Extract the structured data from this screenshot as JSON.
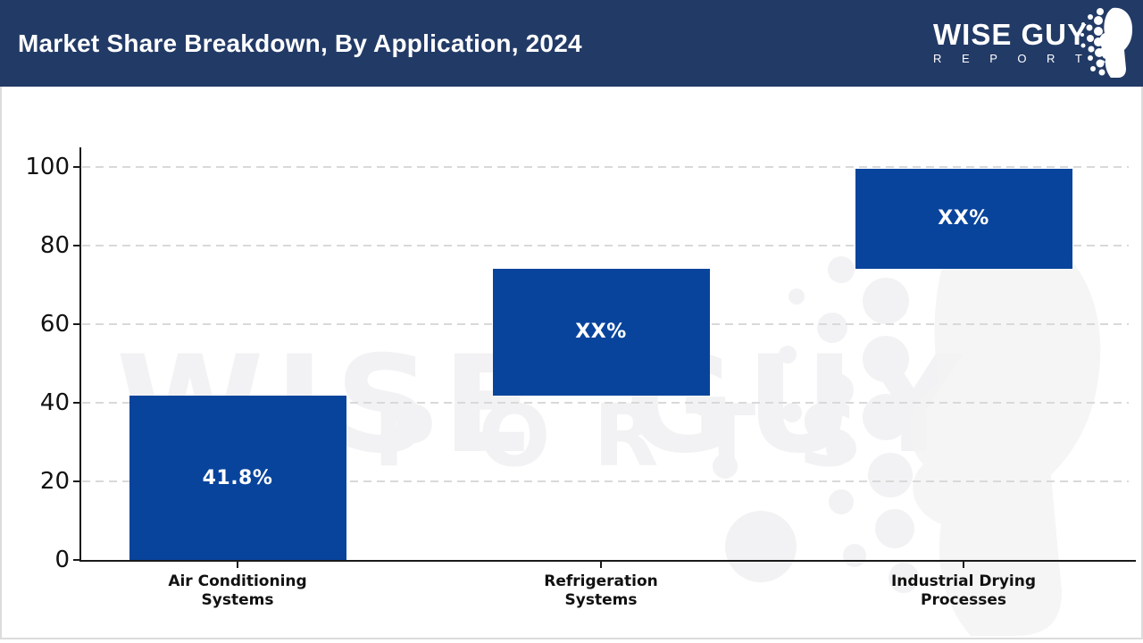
{
  "header": {
    "title": "Market Share Breakdown, By Application, 2024",
    "bg_color": "#223a66",
    "logo": {
      "line1": "WISE GUY",
      "line2": "R E P O R T S"
    }
  },
  "watermark": {
    "line1": "WISE GUY",
    "line2": "REPORTS",
    "color": "#f2f2f4"
  },
  "chart_data": {
    "type": "bar",
    "subtype": "waterfall",
    "title": "Market Share Breakdown, By Application, 2024",
    "categories": [
      [
        "Air Conditioning",
        "Systems"
      ],
      [
        "Refrigeration",
        "Systems"
      ],
      [
        "Industrial Drying",
        "Processes"
      ]
    ],
    "segments": [
      {
        "category": "Air Conditioning Systems",
        "start": 0,
        "end": 41.8,
        "value": 41.8,
        "label": "41.8%"
      },
      {
        "category": "Refrigeration Systems",
        "start": 41.8,
        "end": 74.2,
        "value": 32.4,
        "label": "XX%"
      },
      {
        "category": "Industrial Drying Processes",
        "start": 74.2,
        "end": 99.6,
        "value": 25.4,
        "label": "XX%"
      }
    ],
    "bar_color": "#08449c",
    "bar_label_color": "#ffffff",
    "yticks": [
      0,
      20,
      40,
      60,
      80,
      100
    ],
    "ylim": [
      0,
      105
    ],
    "xlabel": "",
    "ylabel": "",
    "grid": "horizontal-dashed",
    "legend": "none"
  }
}
